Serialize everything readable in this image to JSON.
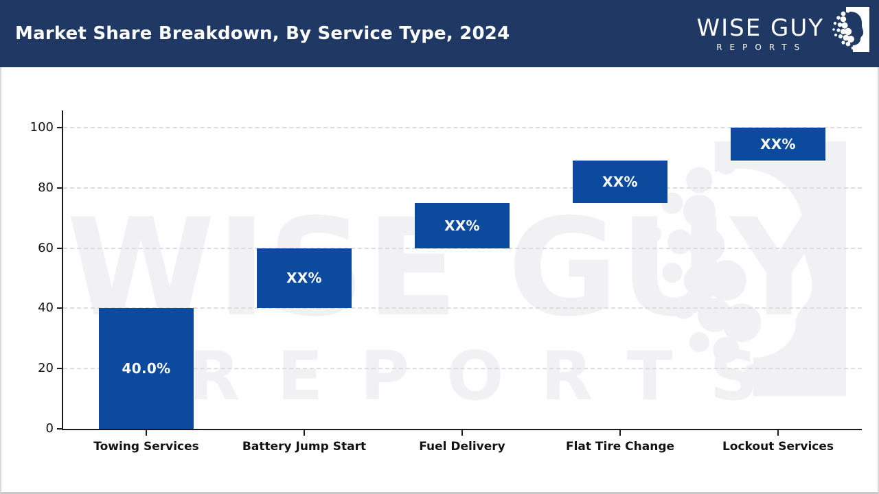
{
  "header": {
    "title": "Market Share Breakdown, By Service Type, 2024",
    "brand": {
      "line1": "WISE GUY",
      "line2": "REPORTS"
    }
  },
  "watermark": {
    "line1": "WISE GUY",
    "line2": "REPORTS"
  },
  "chart_data": {
    "type": "bar",
    "subtype": "waterfall-style floating bars",
    "title": "Market Share Breakdown, By Service Type, 2024",
    "categories": [
      "Towing Services",
      "Battery Jump Start",
      "Fuel Delivery",
      "Flat Tire Change",
      "Lockout Services"
    ],
    "bars": [
      {
        "category": "Towing Services",
        "start": 0,
        "end": 40,
        "label": "40.0%"
      },
      {
        "category": "Battery Jump Start",
        "start": 40,
        "end": 60,
        "label": "XX%"
      },
      {
        "category": "Fuel Delivery",
        "start": 60,
        "end": 75,
        "label": "XX%"
      },
      {
        "category": "Flat Tire Change",
        "start": 75,
        "end": 89,
        "label": "XX%"
      },
      {
        "category": "Lockout Services",
        "start": 89,
        "end": 100,
        "label": "XX%"
      }
    ],
    "xlabel": "",
    "ylabel": "",
    "ylim": [
      0,
      100
    ],
    "yticks": [
      0,
      20,
      40,
      60,
      80,
      100
    ],
    "grid": "horizontal-dashed",
    "legend": "none",
    "bar_color": "#0C4A9E",
    "bar_label_color": "#FFFFFF"
  },
  "colors": {
    "header_bg": "#203864",
    "bar_fill": "#0C4A9E",
    "grid": "#DCDCDC",
    "axis": "#1A1A1A",
    "watermark": "#F1F1F4",
    "panel_border": "#D8D8D8"
  }
}
